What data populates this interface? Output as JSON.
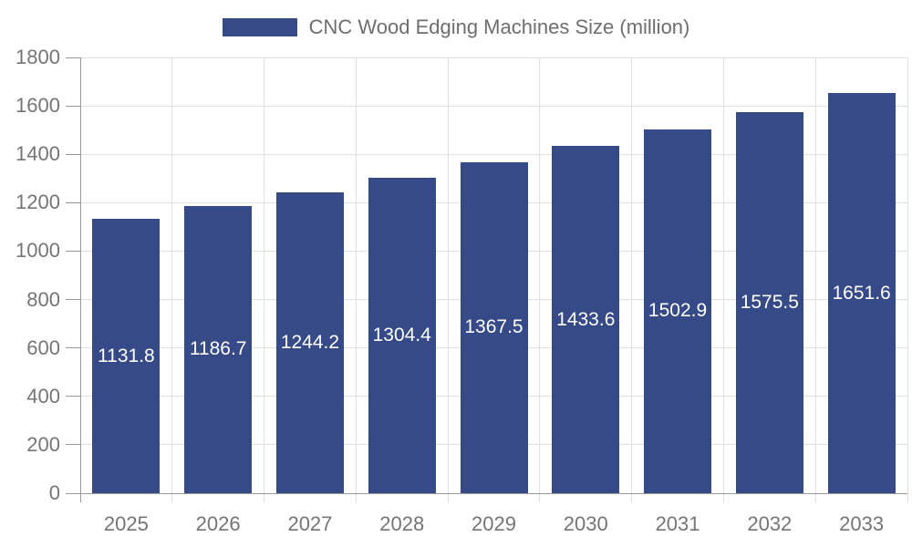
{
  "legend": {
    "label": "CNC Wood Edging Machines Size (million)"
  },
  "chart_data": {
    "type": "bar",
    "title": "CNC Wood Edging Machines Size (million)",
    "categories": [
      "2025",
      "2026",
      "2027",
      "2028",
      "2029",
      "2030",
      "2031",
      "2032",
      "2033"
    ],
    "values": [
      1131.8,
      1186.7,
      1244.2,
      1304.4,
      1367.5,
      1433.6,
      1502.9,
      1575.5,
      1651.6
    ],
    "xlabel": "",
    "ylabel": "",
    "ylim": [
      0,
      1800
    ],
    "yticks": [
      0,
      200,
      400,
      600,
      800,
      1000,
      1200,
      1400,
      1600,
      1800
    ],
    "grid": true,
    "legend_position": "top",
    "colors": {
      "bar": "#364A87",
      "bar_label": "#ffffff",
      "axis": "#999999",
      "grid": "#e0e0e0",
      "tick_text": "#757575",
      "legend_text": "#6e6e6e",
      "background": "#ffffff"
    }
  }
}
